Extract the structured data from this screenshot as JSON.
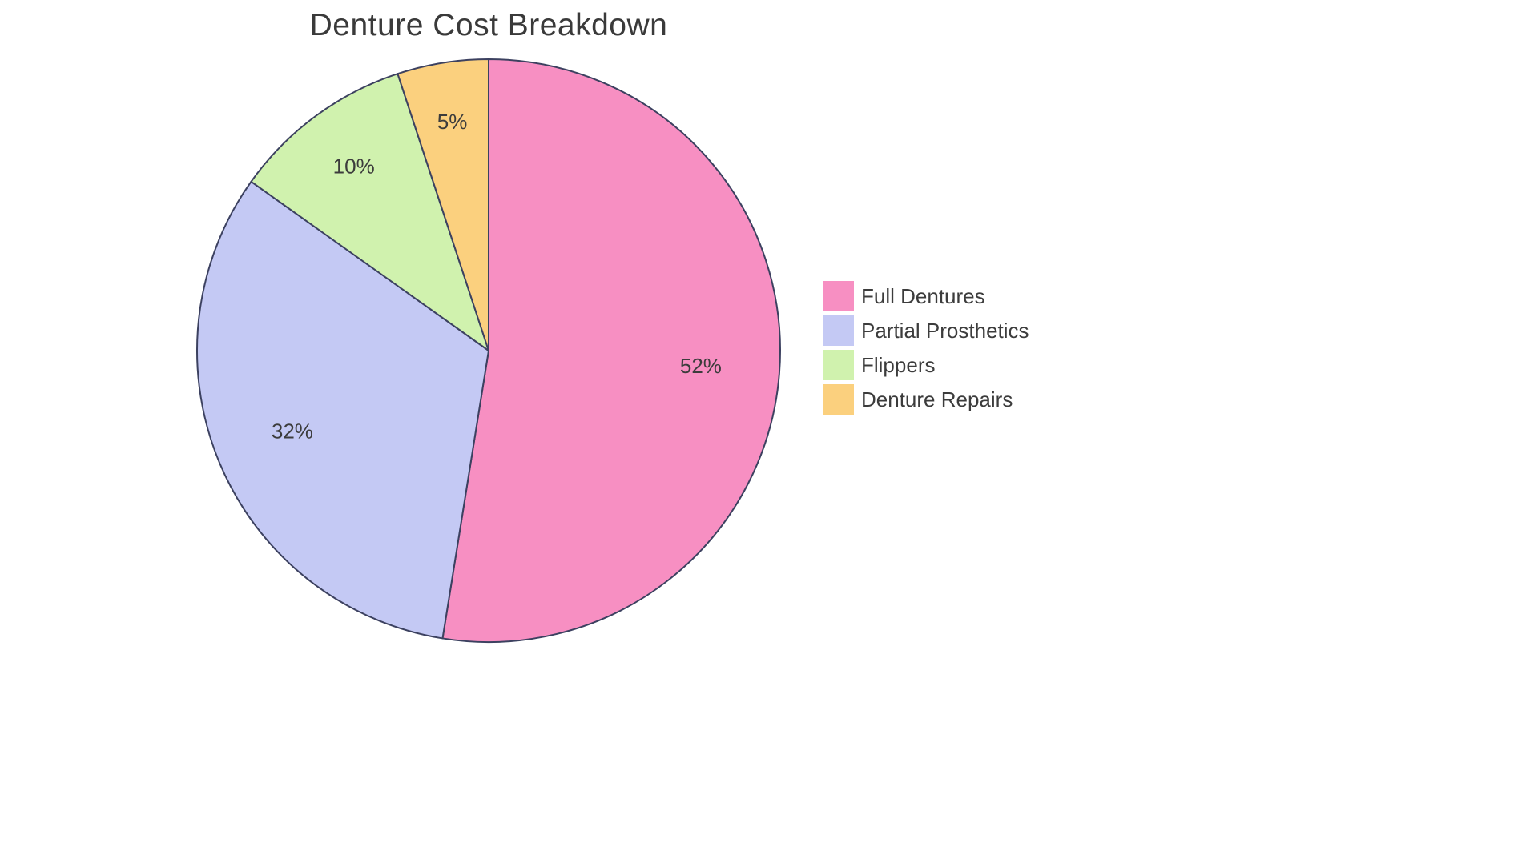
{
  "chart_data": {
    "type": "pie",
    "title": "Denture Cost Breakdown",
    "labels": [
      "Full Dentures",
      "Partial Prosthetics",
      "Flippers",
      "Denture Repairs"
    ],
    "values": [
      52,
      32,
      10,
      5
    ],
    "value_labels": [
      "52%",
      "32%",
      "10%",
      "5%"
    ],
    "colors": [
      "#F78FC2",
      "#C4C9F4",
      "#D0F2AE",
      "#FBD07E"
    ],
    "outline_color": "#3C4160",
    "label_color": "#3C3C3C",
    "title_color": "#3A3A3A",
    "background_color": "#FFFFFF",
    "start_angle_deg": -90,
    "direction": "clockwise",
    "legend_position": "right",
    "legend": [
      "Full Dentures",
      "Partial Prosthetics",
      "Flippers",
      "Denture Repairs"
    ]
  }
}
